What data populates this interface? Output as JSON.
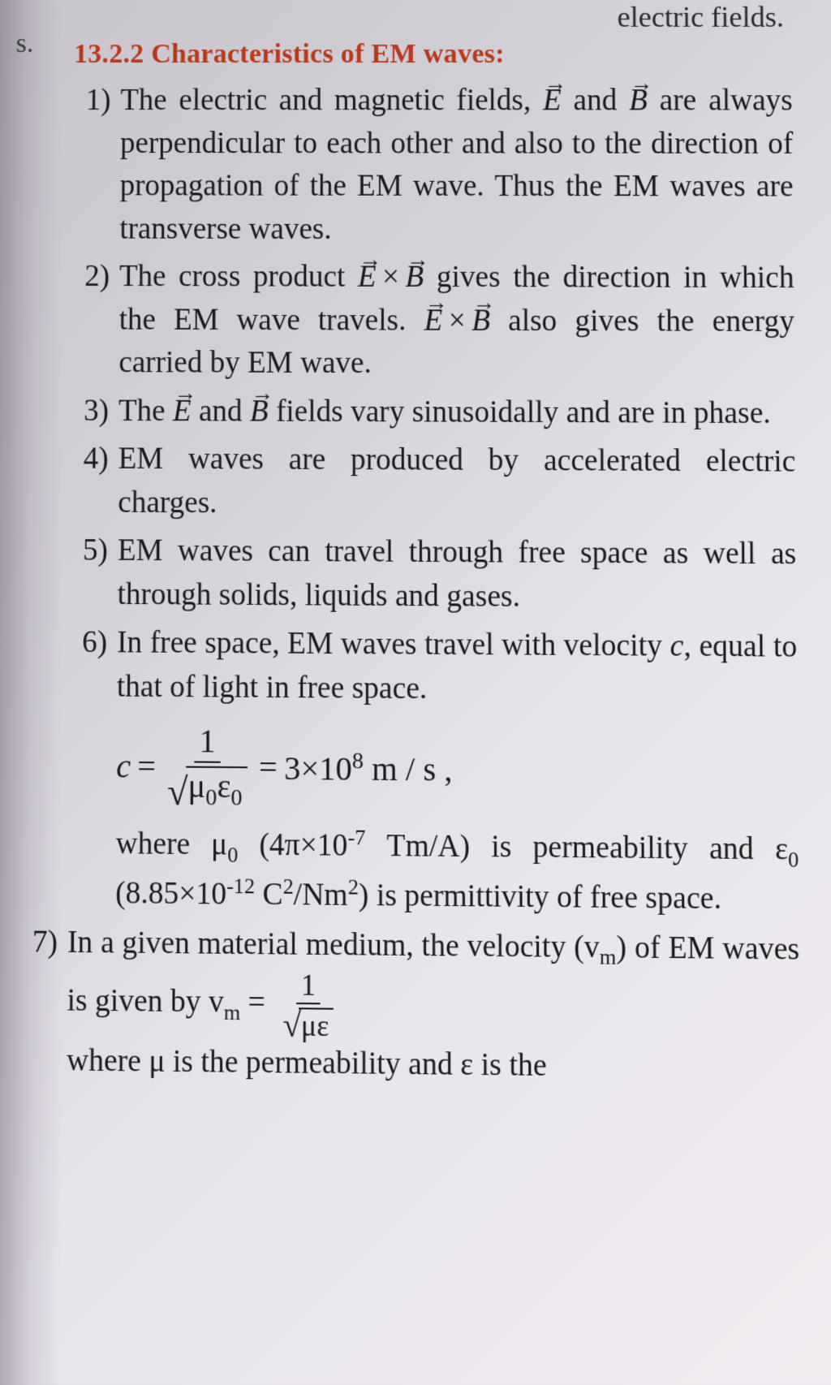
{
  "top_fragment": "electric fields.",
  "margin_fragment": "s.",
  "section": {
    "number": "13.2.2",
    "title": "Characteristics of EM waves:"
  },
  "items": [
    {
      "num": "1)",
      "text_parts": [
        "The electric and magnetic fields, ",
        " and ",
        " are always perpendicular to each other and also to the direction of propagation of the EM wave. Thus the EM waves are transverse waves."
      ],
      "vec1": "E",
      "vec2": "B"
    },
    {
      "num": "2)",
      "text_parts": [
        "The cross product ",
        " gives the direction in which the EM wave travels. ",
        " also gives the energy carried by EM wave."
      ],
      "cross1_a": "E",
      "cross1_b": "B",
      "cross2_a": "E",
      "cross2_b": "B"
    },
    {
      "num": "3)",
      "text_parts": [
        "The ",
        " and ",
        " fields vary sinusoidally and are in phase."
      ],
      "vec1": "E",
      "vec2": "B"
    },
    {
      "num": "4)",
      "text": "EM waves are produced by accelerated electric charges."
    },
    {
      "num": "5)",
      "text": "EM waves can travel through free space as well as through solids, liquids and gases."
    },
    {
      "num": "6)",
      "text_parts": [
        "In free space, EM waves travel with velocity ",
        "c",
        ", equal to that of light in free space."
      ],
      "formula": {
        "lhs": "c",
        "frac_numer": "1",
        "sqrt_mu": "μ",
        "sqrt_eps": "ε",
        "sub0a": "0",
        "sub0b": "0",
        "rhs_val": "3×10",
        "rhs_exp": "8",
        "rhs_unit": " m / s ,"
      },
      "where": {
        "pre": "where μ",
        "sub1": "0",
        "paren1a": " (4π×10",
        "exp1": "-7",
        "paren1b": " Tm/A) is permeability and ε",
        "sub2": "0",
        "paren2a": " (8.85×10",
        "exp2": "-12",
        "paren2b": " C",
        "exp3": "2",
        "paren2c": "/Nm",
        "exp4": "2",
        "paren2d": ") is permittivity of free space."
      }
    },
    {
      "num": "7)",
      "text_a": "In a given material medium, the velocity (v",
      "sub_m1": "m",
      "text_b": ") of EM waves is given by v",
      "sub_m2": "m",
      "text_c": " = ",
      "frac_numer": "1",
      "sqrt_body": "με",
      "where_line": "where μ is the permeability and ε is the"
    }
  ]
}
